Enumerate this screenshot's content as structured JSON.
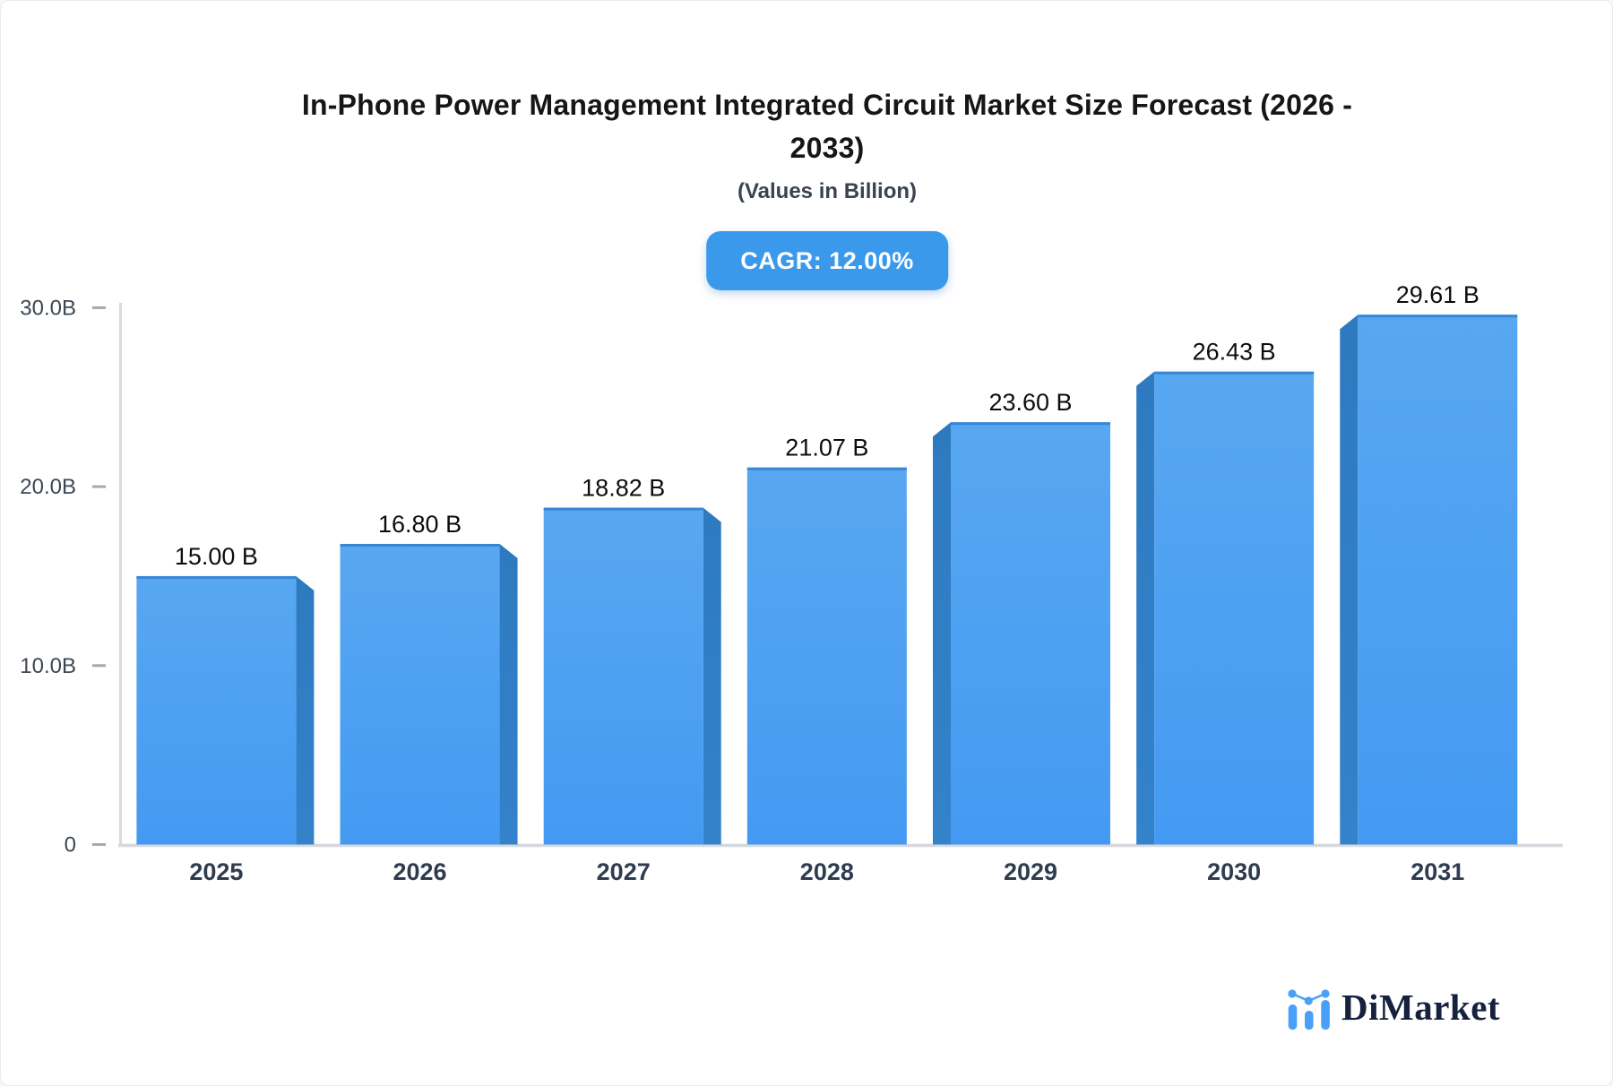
{
  "page": {
    "background": "#f6f7f9",
    "card_background": "#ffffff",
    "card_border": "#e9ebef"
  },
  "header": {
    "title_line1": "In-Phone Power Management Integrated Circuit Market Size Forecast (2026 -",
    "title_line2": "2033)",
    "subtitle": "(Values in Billion)",
    "cagr_badge": "CAGR: 12.00%",
    "badge_color": "#3b99ec"
  },
  "chart_data": {
    "type": "bar",
    "title": "In-Phone Power Management Integrated Circuit Market Size Forecast (2026 - 2033)",
    "subtitle": "(Values in Billion)",
    "cagr_percent": 12.0,
    "unit": "Billion",
    "categories": [
      "2025",
      "2026",
      "2027",
      "2028",
      "2029",
      "2030",
      "2031"
    ],
    "values": [
      15.0,
      16.8,
      18.82,
      21.07,
      23.6,
      26.43,
      29.61
    ],
    "value_labels": [
      "15.00 B",
      "16.80 B",
      "18.82 B",
      "21.07 B",
      "23.60 B",
      "26.43 B",
      "29.61 B"
    ],
    "ylim": [
      0,
      30
    ],
    "yticks": [
      {
        "value": 30,
        "label": "30.0B"
      },
      {
        "value": 20,
        "label": "20.0B"
      },
      {
        "value": 10,
        "label": "10.0B"
      },
      {
        "value": 0,
        "label": "0"
      }
    ],
    "grid": false,
    "legend": false,
    "style_3d": true,
    "bar_face_top_color": "#58a7f1",
    "bar_face_bottom_color": "#449af2",
    "bar_side_color": "#2f7ec5",
    "bar_top_edge_color": "#3787d6",
    "axis_color": "#d4d8dc",
    "tick_color": "#a3a9b1"
  },
  "footer": {
    "brand": "DiMarket",
    "brand_color": "#15213d",
    "logo_color": "#4aa0f7"
  }
}
